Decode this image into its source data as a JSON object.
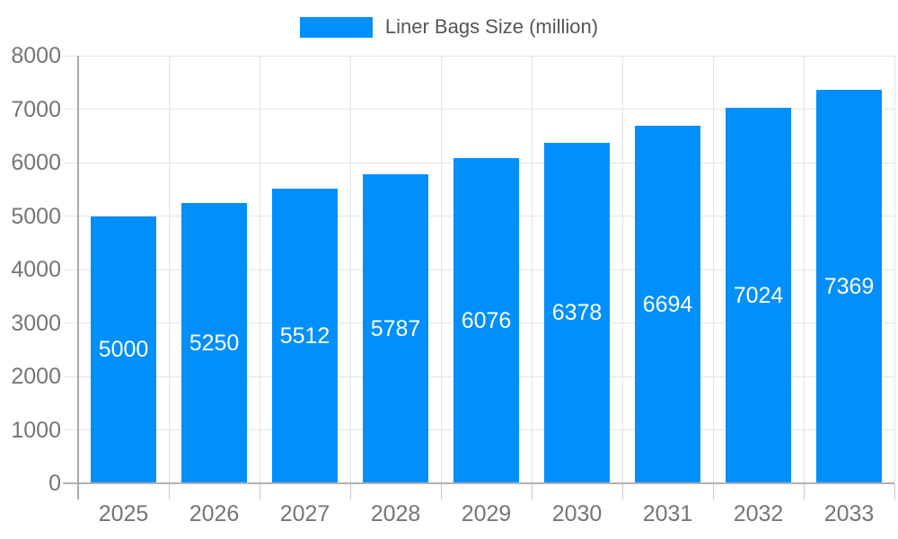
{
  "chart_data": {
    "type": "bar",
    "title": "Liner Bags Size (million)",
    "legend": {
      "label": "Liner Bags Size (million)",
      "position": "top"
    },
    "series": [
      {
        "name": "Liner Bags Size (million)",
        "values": [
          5000,
          5250,
          5512,
          5787,
          6076,
          6378,
          6694,
          7024,
          7369
        ]
      }
    ],
    "categories": [
      "2025",
      "2026",
      "2027",
      "2028",
      "2029",
      "2030",
      "2031",
      "2032",
      "2033"
    ],
    "bar_value_labels": [
      "5000",
      "5250",
      "5512",
      "5787",
      "6076",
      "6378",
      "6694",
      "7024",
      "7369"
    ],
    "xlabel": "",
    "ylabel": "",
    "ylim": [
      0,
      8000
    ],
    "y_ticks": [
      0,
      1000,
      2000,
      3000,
      4000,
      5000,
      6000,
      7000,
      8000
    ],
    "y_tick_labels": [
      "0",
      "1000",
      "2000",
      "3000",
      "4000",
      "5000",
      "6000",
      "7000",
      "8000"
    ],
    "grid": true,
    "colors": {
      "bar": "#008FFB",
      "bar_label_text": "#ffffff",
      "grid_line": "#e4e4e4",
      "x_axis_line": "#b3b3b3",
      "y_axis_line": "#a8a8a8",
      "tick_mark": "#c9c9c9",
      "axis_label_text": "#757575",
      "legend_text": "#555555",
      "background": "#ffffff"
    }
  }
}
